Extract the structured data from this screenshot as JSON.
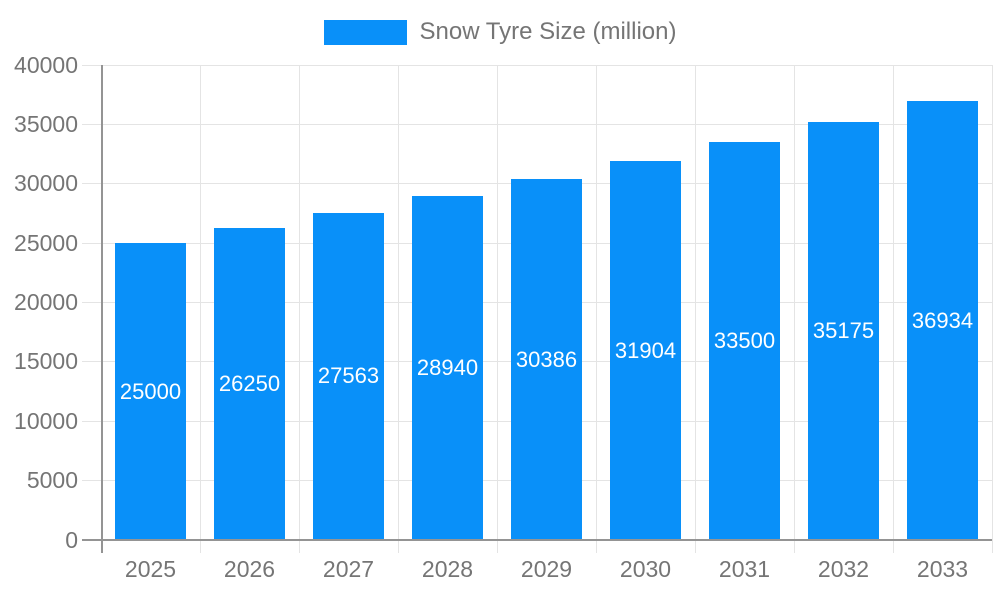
{
  "chart_data": {
    "type": "bar",
    "title": "Snow Tyre Size (million)",
    "legend": {
      "label": "Snow Tyre Size (million)",
      "position": "top-center"
    },
    "categories": [
      "2025",
      "2026",
      "2027",
      "2028",
      "2029",
      "2030",
      "2031",
      "2032",
      "2033"
    ],
    "series": [
      {
        "name": "Snow Tyre Size (million)",
        "values": [
          25000,
          26250,
          27563,
          28940,
          30386,
          31904,
          33500,
          35175,
          36934
        ]
      }
    ],
    "xlabel": "",
    "ylabel": "",
    "ylim": [
      0,
      40000
    ],
    "yticks": [
      0,
      5000,
      10000,
      15000,
      20000,
      25000,
      30000,
      35000,
      40000
    ],
    "grid": true,
    "value_labels": "inside-center",
    "legend_position": "top-center",
    "colors": {
      "bar": "#0990f9",
      "grid": "#e4e4e4",
      "axis": "#949494",
      "tick_label": "#757575",
      "legend_text": "#757575",
      "value_label": "#ffffff",
      "background": "#ffffff"
    }
  }
}
